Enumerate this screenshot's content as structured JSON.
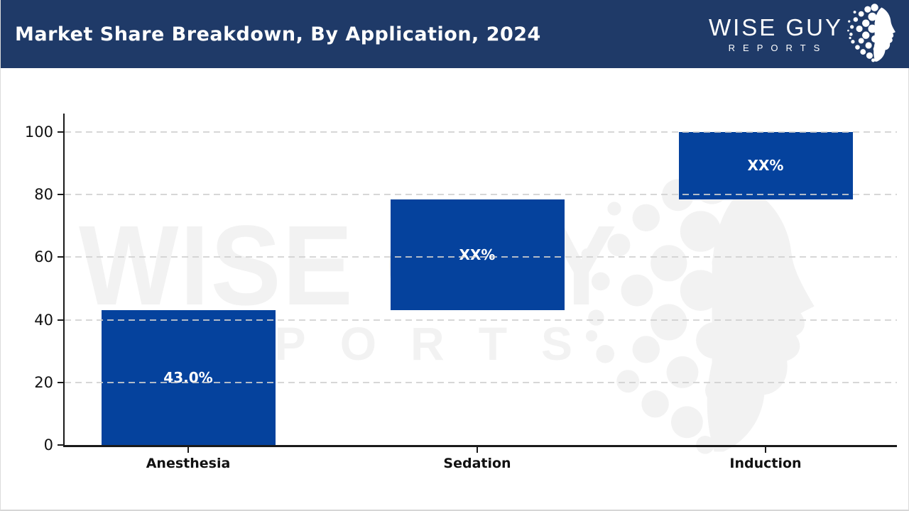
{
  "header": {
    "title": "Market Share Breakdown, By Application, 2024",
    "logo": {
      "line1": "WISE GUY",
      "line2": "REPORTS"
    },
    "bg_color": "#1f3a68"
  },
  "watermark": {
    "line1": "WISE GUY",
    "line2": "REPORTS"
  },
  "colors": {
    "header_bg": "#1f3a68",
    "bar_blue": "#05429d",
    "gridline": "#d0d0d0",
    "watermark_gray": "#f2f2f2",
    "axis_black": "#1a1a1a"
  },
  "chart_data": {
    "type": "bar",
    "subtype": "stacked-waterfall-segments",
    "title": "Market Share Breakdown, By Application, 2024",
    "categories": [
      "Anesthesia",
      "Sedation",
      "Induction"
    ],
    "segments": [
      {
        "category": "Anesthesia",
        "start": 0,
        "end": 43.0,
        "label": "43.0%"
      },
      {
        "category": "Sedation",
        "start": 43.0,
        "end": 78.5,
        "label": "XX%"
      },
      {
        "category": "Induction",
        "start": 78.5,
        "end": 100.0,
        "label": "XX%"
      }
    ],
    "values_estimated": [
      43.0,
      35.5,
      21.5
    ],
    "bar_labels": [
      "43.0%",
      "XX%",
      "XX%"
    ],
    "xlabel": "",
    "ylabel": "",
    "ylim": [
      0,
      100
    ],
    "yticks": [
      0,
      20,
      40,
      60,
      80,
      100
    ],
    "grid": "horizontal-dashed",
    "legend": "none",
    "bar_color": "#05429d"
  }
}
